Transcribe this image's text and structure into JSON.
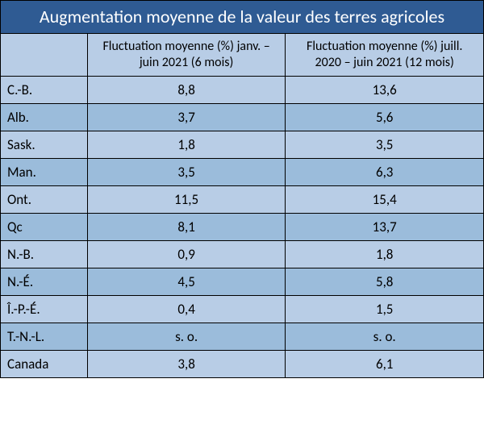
{
  "table": {
    "type": "table",
    "title": "Augmentation moyenne de la valeur des terres agricoles",
    "title_bg": "#2f5b93",
    "title_color": "#ffffff",
    "title_fontsize": 22,
    "header_bg": "#b8cde6",
    "header_fontsize": 16,
    "row_alt_bg_light": "#b8cde6",
    "row_alt_bg_dark": "#9bbcdb",
    "border_color": "#000000",
    "cell_fontsize": 17,
    "columns": [
      {
        "key": "region",
        "label": ""
      },
      {
        "key": "six_month",
        "label": "Fluctuation moyenne (%) janv. – juin 2021\n(6 mois)"
      },
      {
        "key": "twelve_month",
        "label": "Fluctuation moyenne (%) juill. 2020 – juin 2021\n(12 mois)"
      }
    ],
    "rows": [
      {
        "region": "C.-B.",
        "six_month": "8,8",
        "twelve_month": "13,6"
      },
      {
        "region": "Alb.",
        "six_month": "3,7",
        "twelve_month": "5,6"
      },
      {
        "region": "Sask.",
        "six_month": "1,8",
        "twelve_month": "3,5"
      },
      {
        "region": "Man.",
        "six_month": "3,5",
        "twelve_month": "6,3"
      },
      {
        "region": "Ont.",
        "six_month": "11,5",
        "twelve_month": "15,4"
      },
      {
        "region": "Qc",
        "six_month": "8,1",
        "twelve_month": "13,7"
      },
      {
        "region": "N.-B.",
        "six_month": "0,9",
        "twelve_month": "1,8"
      },
      {
        "region": "N.-É.",
        "six_month": "4,5",
        "twelve_month": "5,8"
      },
      {
        "region": "Î.-P.-É.",
        "six_month": "0,4",
        "twelve_month": "1,5"
      },
      {
        "region": "T.-N.-L.",
        "six_month": "s. o.",
        "twelve_month": "s. o."
      },
      {
        "region": "Canada",
        "six_month": "3,8",
        "twelve_month": "6,1"
      }
    ]
  }
}
